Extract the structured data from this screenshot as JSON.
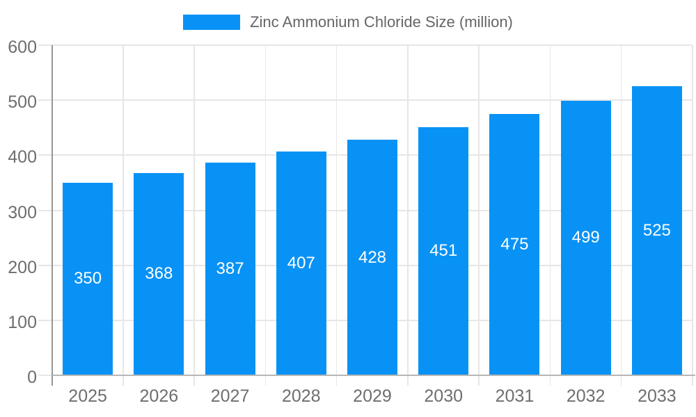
{
  "chart_data": {
    "type": "bar",
    "title": "",
    "legend": "Zinc Ammonium Chloride Size (million)",
    "legend_position": "top",
    "categories": [
      "2025",
      "2026",
      "2027",
      "2028",
      "2029",
      "2030",
      "2031",
      "2032",
      "2033"
    ],
    "values": [
      350,
      368,
      387,
      407,
      428,
      451,
      475,
      499,
      525
    ],
    "xlabel": "",
    "ylabel": "",
    "ylim": [
      0,
      600
    ],
    "ytick_step": 100,
    "yticks": [
      0,
      100,
      200,
      300,
      400,
      500,
      600
    ],
    "grid": true,
    "bar_labels_inside": true,
    "colors": {
      "bar": "#0992f5",
      "bar_label": "#ffffff",
      "grid": "#e6e6e6",
      "x_axis_line": "#b6b6b6",
      "y_axis_line": "#959595",
      "tick_text": "#6e6e6e",
      "legend_text": "#666666",
      "background": "#ffffff"
    }
  }
}
